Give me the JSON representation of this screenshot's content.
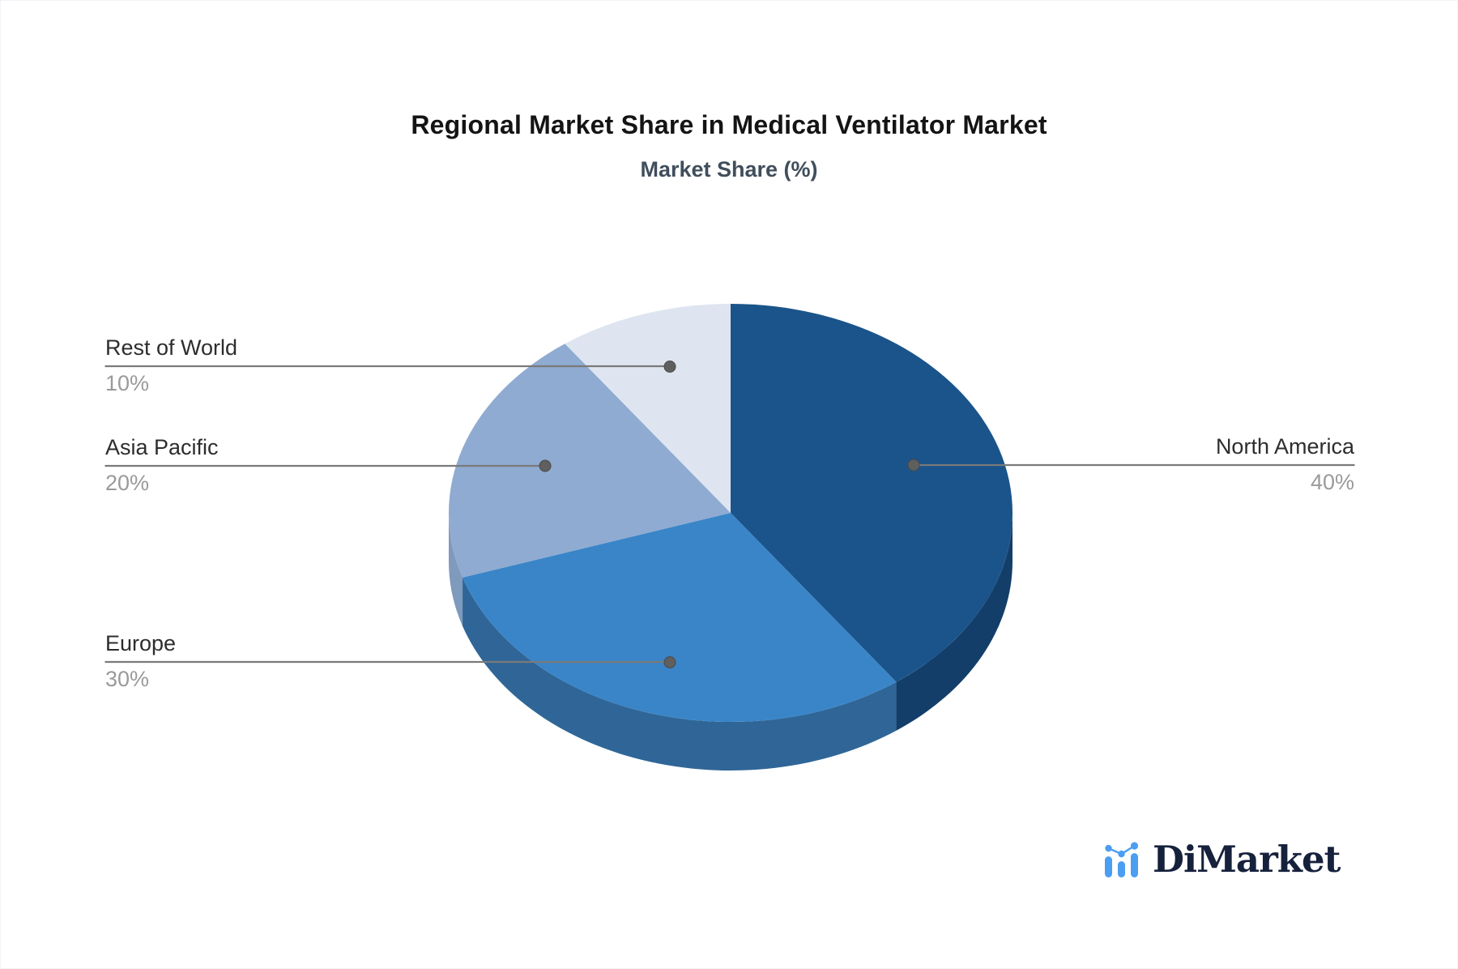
{
  "page": {
    "background": "#ffffff"
  },
  "title": "Regional Market Share in Medical Ventilator Market",
  "subtitle": "Market Share (%)",
  "brand": {
    "name": "DiMarket",
    "icon": "bar-chart-logo-icon",
    "text_color": "#16213c",
    "icon_color": "#4b9ef1"
  },
  "chart_data": {
    "type": "pie",
    "style": "3d",
    "title": "Regional Market Share in Medical Ventilator Market",
    "subtitle": "Market Share (%)",
    "unit": "%",
    "start_angle": "12-oclock",
    "direction": "clockwise",
    "label_style": "outside-callouts-with-leader-lines",
    "legend_position": "none",
    "labels": [
      "North America",
      "Europe",
      "Asia Pacific",
      "Rest of World"
    ],
    "values": [
      40,
      30,
      20,
      10
    ],
    "slices": [
      {
        "label": "North America",
        "value": 40,
        "pct": "40%",
        "color": "#1a548a",
        "side_color": "#123e69"
      },
      {
        "label": "Europe",
        "value": 30,
        "pct": "30%",
        "color": "#3a85c8",
        "side_color": "#2f6697"
      },
      {
        "label": "Asia Pacific",
        "value": 20,
        "pct": "20%",
        "color": "#8fabd1",
        "side_color": "#7e9abc"
      },
      {
        "label": "Rest of World",
        "value": 10,
        "pct": "10%",
        "color": "#dee5f0",
        "side_color": "#b9c6da"
      }
    ],
    "callout_line_color": "#7a7a7a",
    "callout_dot_color": "#5f5f5f",
    "label_text_color": "#2d2d2d",
    "pct_text_color": "#9a9a9a"
  }
}
